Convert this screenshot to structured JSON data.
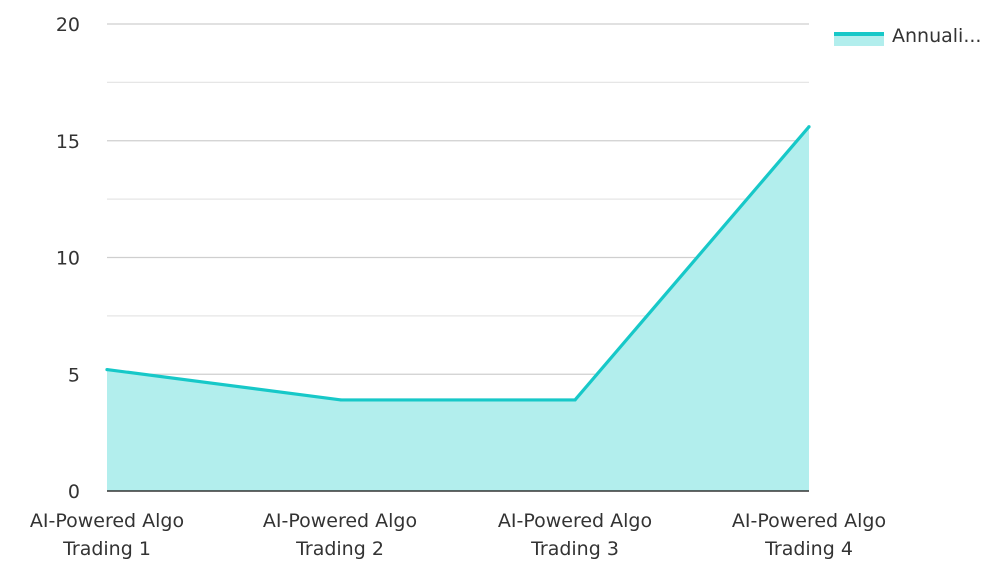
{
  "chart_data": {
    "type": "area",
    "categories": [
      [
        "AI-Powered Algo",
        "Trading 1"
      ],
      [
        "AI-Powered Algo",
        "Trading 2"
      ],
      [
        "AI-Powered Algo",
        "Trading 3"
      ],
      [
        "AI-Powered Algo",
        "Trading 4"
      ]
    ],
    "series": [
      {
        "name": "Annuali...",
        "values": [
          5.2,
          3.9,
          3.9,
          15.6
        ]
      }
    ],
    "ylim": [
      0,
      20
    ],
    "yticks": [
      "0",
      "5",
      "10",
      "15",
      "20"
    ],
    "grid": true,
    "legend_position": "top-right",
    "colors": {
      "line": "#17C8C8",
      "fill": "#B2EEED",
      "grid": "#D8D8D8",
      "axis": "#333333"
    }
  }
}
